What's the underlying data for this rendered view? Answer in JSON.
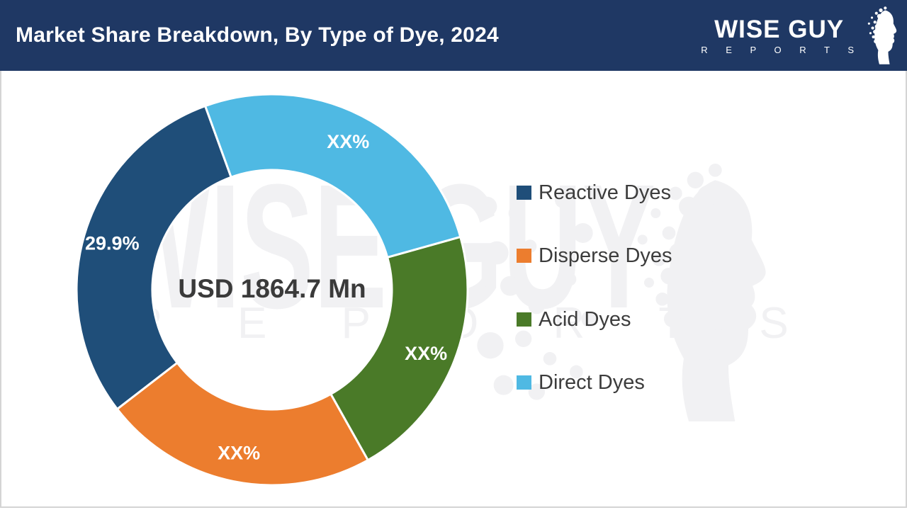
{
  "header": {
    "title": "Market Share Breakdown, By Type of Dye, 2024",
    "background_color": "#1F3864",
    "logo": {
      "name": "WISE GUY",
      "subtitle": "R E P O R T S"
    }
  },
  "watermark": {
    "line1": "WISE GUY",
    "line2": "R E P O R T S"
  },
  "chart_data": {
    "type": "pie",
    "subtype": "donut",
    "title": "Market Share Breakdown, By Type of Dye, 2024",
    "center_label": "USD 1864.7 Mn",
    "start_angle_deg": 110,
    "direction": "counterclockwise",
    "inner_radius_ratio": 0.61,
    "legend_position": "right",
    "segments": [
      {
        "name": "Reactive Dyes",
        "value_pct": 29.9,
        "display_label": "29.9%",
        "color": "#1F4E79"
      },
      {
        "name": "Disperse Dyes",
        "value_pct": 22.7,
        "display_label": "XX%",
        "color": "#EC7D2E"
      },
      {
        "name": "Acid Dyes",
        "value_pct": 21.2,
        "display_label": "XX%",
        "color": "#4A7A28"
      },
      {
        "name": "Direct Dyes",
        "value_pct": 26.2,
        "display_label": "XX%",
        "color": "#4FB9E3"
      }
    ]
  }
}
